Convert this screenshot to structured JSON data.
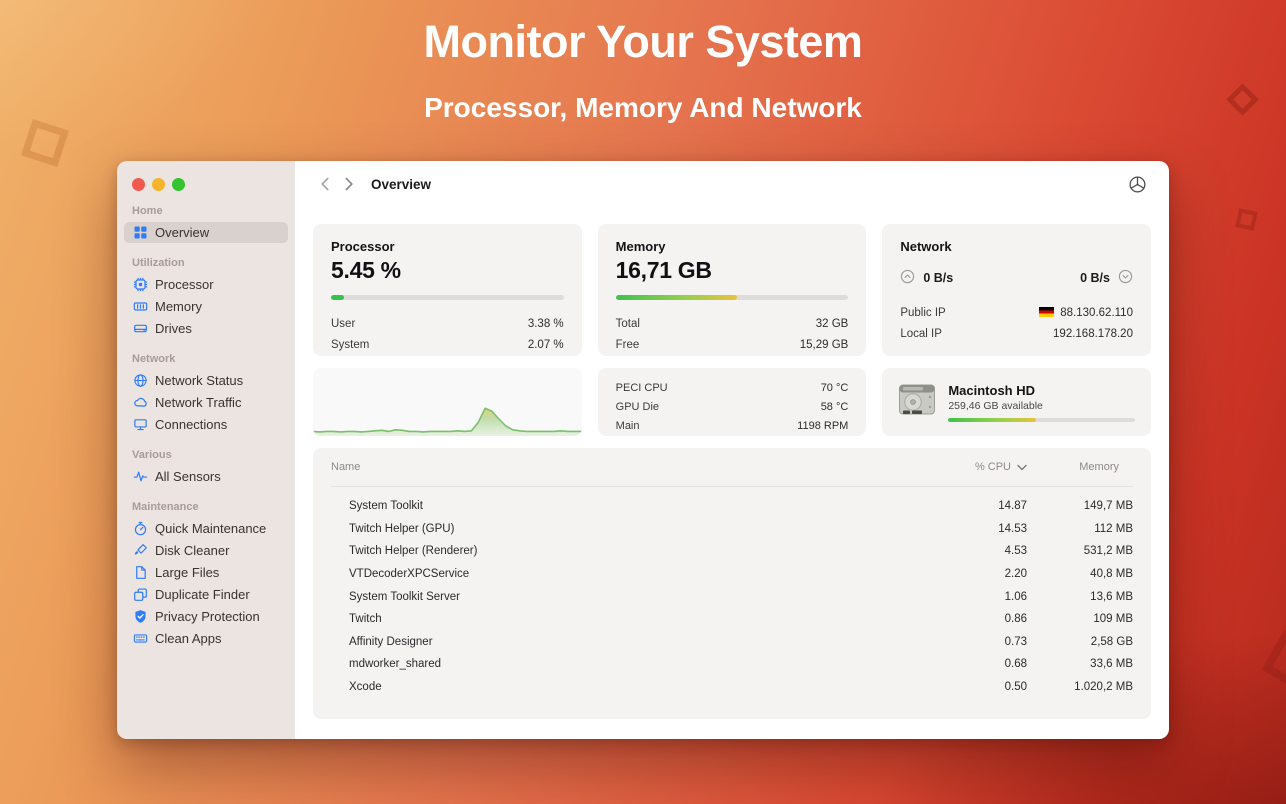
{
  "hero": {
    "title": "Monitor Your System",
    "subtitle": "Processor, Memory And Network"
  },
  "window": {
    "toolbar": {
      "title": "Overview"
    },
    "sidebar": {
      "sections": [
        {
          "label": "Home",
          "items": [
            {
              "label": "Overview",
              "icon": "grid",
              "selected": true
            }
          ]
        },
        {
          "label": "Utilization",
          "items": [
            {
              "label": "Processor",
              "icon": "cpu"
            },
            {
              "label": "Memory",
              "icon": "ram"
            },
            {
              "label": "Drives",
              "icon": "drive"
            }
          ]
        },
        {
          "label": "Network",
          "items": [
            {
              "label": "Network Status",
              "icon": "globe"
            },
            {
              "label": "Network Traffic",
              "icon": "cloud"
            },
            {
              "label": "Connections",
              "icon": "display"
            }
          ]
        },
        {
          "label": "Various",
          "items": [
            {
              "label": "All Sensors",
              "icon": "pulse"
            }
          ]
        },
        {
          "label": "Maintenance",
          "items": [
            {
              "label": "Quick Maintenance",
              "icon": "stopwatch"
            },
            {
              "label": "Disk Cleaner",
              "icon": "brush"
            },
            {
              "label": "Large Files",
              "icon": "document"
            },
            {
              "label": "Duplicate Finder",
              "icon": "duplicate"
            },
            {
              "label": "Privacy Protection",
              "icon": "shield"
            },
            {
              "label": "Clean Apps",
              "icon": "keyboard"
            }
          ]
        }
      ]
    },
    "cards": {
      "processor": {
        "title": "Processor",
        "value": "5.45 %",
        "progress_pct": 5.45,
        "rows": [
          {
            "label": "User",
            "value": "3.38 %"
          },
          {
            "label": "System",
            "value": "2.07 %"
          }
        ]
      },
      "memory": {
        "title": "Memory",
        "value": "16,71 GB",
        "progress_pct": 52,
        "rows": [
          {
            "label": "Total",
            "value": "32 GB"
          },
          {
            "label": "Free",
            "value": "15,29 GB"
          }
        ]
      },
      "network": {
        "title": "Network",
        "upload": "0 B/s",
        "download": "0 B/s",
        "rows": [
          {
            "label": "Public IP",
            "value": "88.130.62.110",
            "flag": "germany"
          },
          {
            "label": "Local IP",
            "value": "192.168.178.20"
          }
        ]
      },
      "sensors": {
        "rows": [
          {
            "label": "PECI CPU",
            "value": "70 °C"
          },
          {
            "label": "GPU Die",
            "value": "58 °C"
          },
          {
            "label": "Main",
            "value": "1198 RPM"
          }
        ]
      },
      "disk": {
        "title": "Macintosh HD",
        "available": "259,46 GB available",
        "progress_pct": 47
      }
    },
    "process_table": {
      "columns": {
        "name": "Name",
        "cpu": "% CPU",
        "memory": "Memory"
      },
      "sorted_by": "% CPU",
      "rows": [
        {
          "name": "System Toolkit",
          "cpu": "14.87",
          "memory": "149,7 MB"
        },
        {
          "name": "Twitch Helper (GPU)",
          "cpu": "14.53",
          "memory": "112 MB"
        },
        {
          "name": "Twitch Helper (Renderer)",
          "cpu": "4.53",
          "memory": "531,2 MB"
        },
        {
          "name": "VTDecoderXPCService",
          "cpu": "2.20",
          "memory": "40,8 MB"
        },
        {
          "name": "System Toolkit Server",
          "cpu": "1.06",
          "memory": "13,6 MB"
        },
        {
          "name": "Twitch",
          "cpu": "0.86",
          "memory": "109 MB"
        },
        {
          "name": "Affinity Designer",
          "cpu": "0.73",
          "memory": "2,58 GB"
        },
        {
          "name": "mdworker_shared",
          "cpu": "0.68",
          "memory": "33,6 MB"
        },
        {
          "name": "Xcode",
          "cpu": "0.50",
          "memory": "1.020,2 MB"
        }
      ]
    }
  },
  "chart_data": {
    "type": "area",
    "title": "",
    "xlabel": "",
    "ylabel": "",
    "unit": "% CPU",
    "ylim": [
      0,
      100
    ],
    "grid": false,
    "legend": false,
    "values": [
      3,
      2,
      3,
      3,
      2,
      3,
      3,
      2,
      3,
      4,
      5,
      3,
      6,
      5,
      3,
      3,
      2,
      3,
      3,
      3,
      3,
      4,
      3,
      4,
      20,
      46,
      40,
      26,
      13,
      6,
      4,
      3,
      3,
      3,
      3,
      3,
      4,
      3,
      3,
      3
    ]
  },
  "colors": {
    "accent_blue": "#2f7cf6",
    "progress_green": "#36c24d",
    "progress_yellow": "#e8c33c",
    "chart_line_green": "#7bbf6f",
    "background_orange": "#f0b169",
    "background_red": "#b42a1e"
  }
}
